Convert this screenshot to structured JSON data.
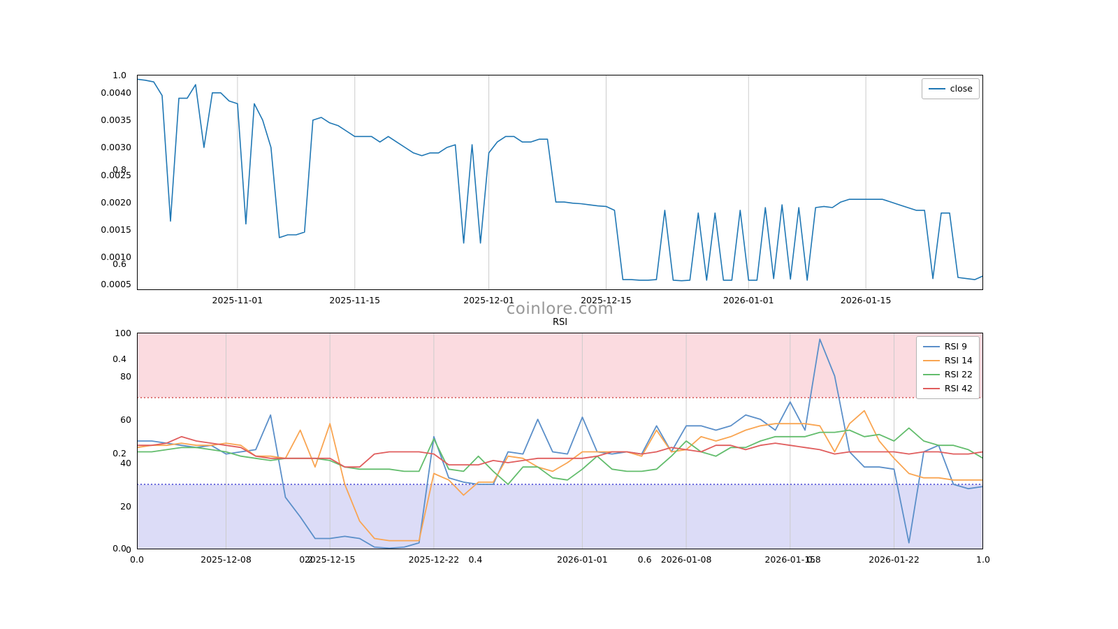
{
  "watermark": "coinlore.com",
  "overlay_axis": {
    "y_labels": [
      "1.0",
      "0.8",
      "0.6",
      "0.4",
      "0.2",
      "0.0"
    ],
    "x_labels": [
      "0.0",
      "0.2",
      "0.4",
      "0.6",
      "0.8",
      "1.0"
    ]
  },
  "chart_data": [
    {
      "name": "price",
      "type": "line",
      "title": "",
      "grid": "vertical",
      "legend_position": "upper-right",
      "ylim": [
        0.00039,
        0.00433
      ],
      "y_ticks": [
        0.0005,
        0.001,
        0.0015,
        0.002,
        0.0025,
        0.003,
        0.0035,
        0.004
      ],
      "n_points": 102,
      "x_start": "2025-10-20",
      "x_ticks": [
        {
          "label": "2025-11-01",
          "index": 12
        },
        {
          "label": "2025-11-15",
          "index": 26
        },
        {
          "label": "2025-12-01",
          "index": 42
        },
        {
          "label": "2025-12-15",
          "index": 56
        },
        {
          "label": "2026-01-01",
          "index": 73
        },
        {
          "label": "2026-01-15",
          "index": 87
        }
      ],
      "series": [
        {
          "name": "close",
          "color": "#1f77b4",
          "values": [
            0.00425,
            0.00423,
            0.0042,
            0.00395,
            0.00165,
            0.0039,
            0.0039,
            0.00415,
            0.003,
            0.004,
            0.004,
            0.00385,
            0.0038,
            0.0016,
            0.0038,
            0.0035,
            0.003,
            0.00135,
            0.0014,
            0.0014,
            0.00145,
            0.0035,
            0.00355,
            0.00345,
            0.0034,
            0.0033,
            0.0032,
            0.0032,
            0.0032,
            0.0031,
            0.0032,
            0.0031,
            0.003,
            0.0029,
            0.00285,
            0.0029,
            0.0029,
            0.003,
            0.00305,
            0.00125,
            0.00305,
            0.00125,
            0.0029,
            0.0031,
            0.0032,
            0.0032,
            0.0031,
            0.0031,
            0.00315,
            0.00315,
            0.002,
            0.002,
            0.00198,
            0.00197,
            0.00195,
            0.00193,
            0.00192,
            0.00185,
            0.00058,
            0.00058,
            0.00057,
            0.00057,
            0.00058,
            0.00185,
            0.00057,
            0.00056,
            0.00057,
            0.0018,
            0.00057,
            0.0018,
            0.00057,
            0.00057,
            0.00185,
            0.00057,
            0.00057,
            0.0019,
            0.0006,
            0.00195,
            0.00059,
            0.0019,
            0.00057,
            0.0019,
            0.00192,
            0.0019,
            0.002,
            0.00205,
            0.00205,
            0.00205,
            0.00205,
            0.00205,
            0.002,
            0.00195,
            0.0019,
            0.00185,
            0.00185,
            0.0006,
            0.0018,
            0.0018,
            0.00062,
            0.0006,
            0.00058,
            0.00065
          ]
        }
      ]
    },
    {
      "name": "rsi",
      "type": "line",
      "title": "RSI",
      "grid": "vertical",
      "legend_position": "upper-right",
      "ylim": [
        0,
        100
      ],
      "y_ticks": [
        0,
        20,
        40,
        60,
        80,
        100
      ],
      "n_points": 58,
      "x_start": "2025-12-02",
      "x_ticks": [
        {
          "label": "2025-12-08",
          "index": 6
        },
        {
          "label": "2025-12-15",
          "index": 13
        },
        {
          "label": "2025-12-22",
          "index": 20
        },
        {
          "label": "2026-01-01",
          "index": 30
        },
        {
          "label": "2026-01-08",
          "index": 37
        },
        {
          "label": "2026-01-15",
          "index": 44
        },
        {
          "label": "2026-01-22",
          "index": 51
        }
      ],
      "bands": [
        {
          "from": 70,
          "to": 100,
          "color": "#fbdbe0",
          "meaning": "overbought-zone"
        },
        {
          "from": 0,
          "to": 30,
          "color": "#dcdcf7",
          "meaning": "oversold-zone"
        }
      ],
      "hlines": [
        {
          "y": 70,
          "color": "#cc3333",
          "style": "dotted"
        },
        {
          "y": 30,
          "color": "#2222cc",
          "style": "dotted"
        }
      ],
      "series": [
        {
          "name": "RSI 9",
          "color": "#5b8fc9",
          "values": [
            50,
            50,
            49,
            48,
            47,
            48,
            44,
            45,
            46,
            62,
            24,
            15,
            5,
            5,
            6,
            5,
            1,
            0.5,
            1,
            3,
            52,
            33,
            31,
            30,
            30,
            45,
            44,
            60,
            45,
            44,
            61,
            45,
            44,
            45,
            44,
            57,
            45,
            57,
            57,
            55,
            57,
            62,
            60,
            55,
            68,
            55,
            97,
            80,
            45,
            38,
            38,
            37,
            3,
            45,
            48,
            30,
            28,
            29
          ]
        },
        {
          "name": "RSI 14",
          "color": "#f9a552",
          "values": [
            47,
            48,
            48,
            49,
            48,
            48,
            49,
            48,
            43,
            43,
            42,
            55,
            38,
            58,
            30,
            13,
            5,
            4,
            4,
            4,
            35,
            32,
            25,
            31,
            31,
            43,
            42,
            38,
            36,
            40,
            45,
            45,
            45,
            45,
            43,
            55,
            45,
            46,
            52,
            50,
            52,
            55,
            57,
            58,
            58,
            58,
            57,
            45,
            58,
            64,
            50,
            42,
            35,
            33,
            33,
            32,
            32,
            32
          ]
        },
        {
          "name": "RSI 22",
          "color": "#63bd6d",
          "values": [
            45,
            45,
            46,
            47,
            47,
            46,
            45,
            43,
            42,
            41,
            42,
            42,
            42,
            41,
            38,
            37,
            37,
            37,
            36,
            36,
            51,
            37,
            36,
            43,
            36,
            30,
            38,
            38,
            33,
            32,
            37,
            43,
            37,
            36,
            36,
            37,
            43,
            50,
            45,
            43,
            47,
            47,
            50,
            52,
            52,
            52,
            54,
            54,
            55,
            52,
            53,
            50,
            56,
            50,
            48,
            48,
            46,
            42
          ]
        },
        {
          "name": "RSI 42",
          "color": "#e05d5d",
          "values": [
            48,
            48,
            49,
            52,
            50,
            49,
            48,
            47,
            43,
            42,
            42,
            42,
            42,
            42,
            38,
            38,
            44,
            45,
            45,
            45,
            44,
            39,
            39,
            39,
            41,
            40,
            41,
            42,
            42,
            42,
            42,
            43,
            45,
            45,
            44,
            45,
            47,
            46,
            45,
            48,
            48,
            46,
            48,
            49,
            48,
            47,
            46,
            44,
            45,
            45,
            45,
            45,
            44,
            45,
            45,
            44,
            44,
            45
          ]
        }
      ]
    }
  ]
}
